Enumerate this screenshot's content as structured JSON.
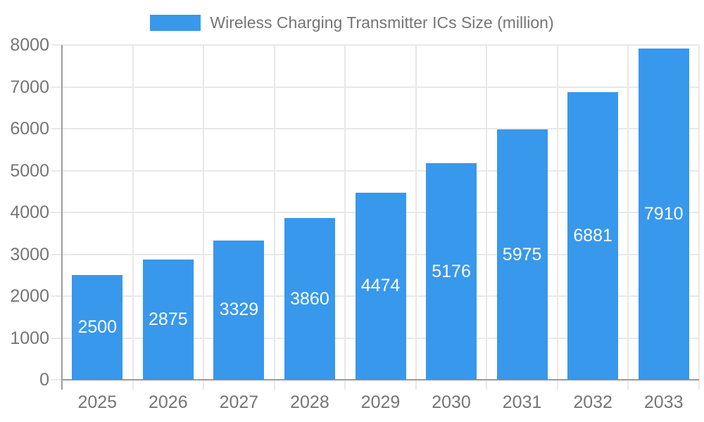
{
  "legend": {
    "label": "Wireless Charging Transmitter ICs Size (million)"
  },
  "colors": {
    "bar": "#3898ec",
    "axis": "#9c9c9c",
    "grid": "#e8e8e8",
    "label_text": "#757575",
    "value_text": "#ffffff"
  },
  "chart_data": {
    "type": "bar",
    "title": "Wireless Charging Transmitter ICs Size (million)",
    "series_name": "Wireless Charging Transmitter ICs Size (million)",
    "categories": [
      "2025",
      "2026",
      "2027",
      "2028",
      "2029",
      "2030",
      "2031",
      "2032",
      "2033"
    ],
    "values": [
      2500,
      2875,
      3329,
      3860,
      4474,
      5176,
      5975,
      6881,
      7910
    ],
    "xlabel": "",
    "ylabel": "",
    "ylim": [
      0,
      8000
    ],
    "ytick_step": 1000,
    "ytick_labels": [
      "0",
      "1000",
      "2000",
      "3000",
      "4000",
      "5000",
      "6000",
      "7000",
      "8000"
    ],
    "grid": true,
    "legend_position": "top",
    "bar_labels": "inside-center-white"
  }
}
